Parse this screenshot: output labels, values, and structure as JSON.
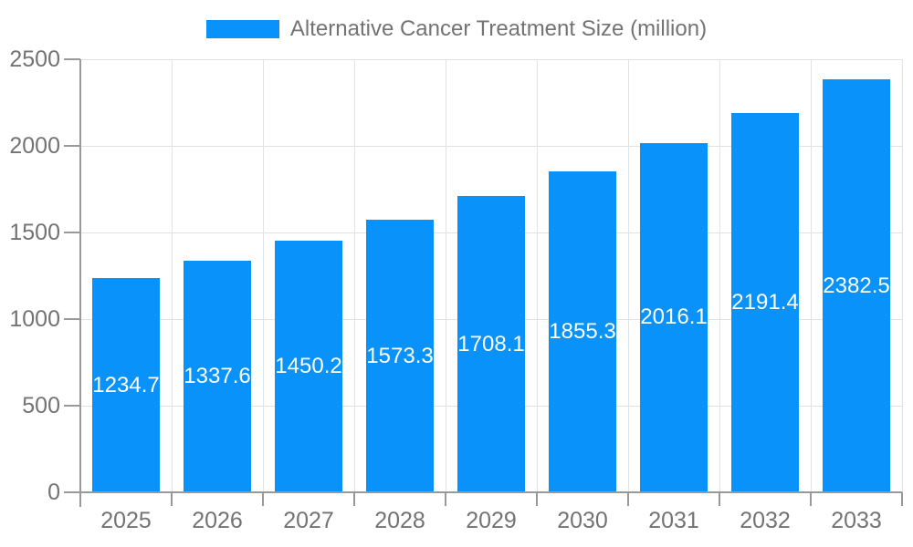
{
  "chart_data": {
    "type": "bar",
    "title": "Alternative Cancer Treatment Size (million)",
    "categories": [
      "2025",
      "2026",
      "2027",
      "2028",
      "2029",
      "2030",
      "2031",
      "2032",
      "2033"
    ],
    "values": [
      1234.7,
      1337.6,
      1450.2,
      1573.3,
      1708.1,
      1855.3,
      2016.1,
      2191.4,
      2382.5
    ],
    "xlabel": "",
    "ylabel": "",
    "ylim": [
      0,
      2500
    ],
    "yticks": [
      0,
      500,
      1000,
      1500,
      2000,
      2500
    ],
    "grid": true,
    "legend_position": "top",
    "value_labels": "inside-center",
    "colors": {
      "bar": "#0892fa",
      "value_label": "#ffffff",
      "axis_text": "#737373",
      "legend_text": "#737373",
      "gridline": "#e2e2e2",
      "axis_line": "#999999",
      "background": "#ffffff"
    }
  }
}
